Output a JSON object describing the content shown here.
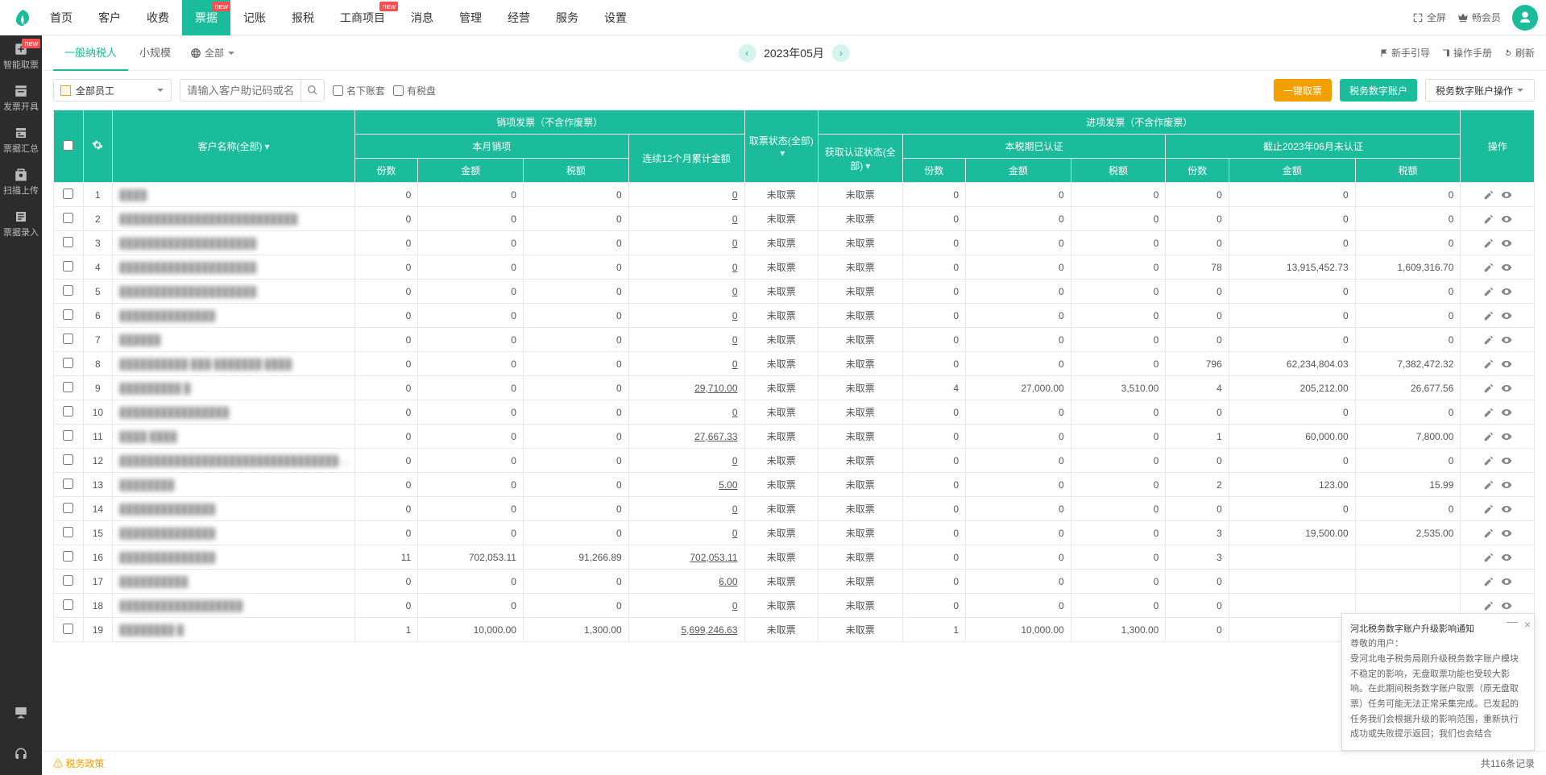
{
  "colors": {
    "teal": "#1abc9c",
    "orange": "#f2a000",
    "red": "#ff4d4f",
    "sidebar": "#2c2c2c"
  },
  "topnav": {
    "items": [
      "首页",
      "客户",
      "收费",
      "票据",
      "记账",
      "报税",
      "工商项目",
      "消息",
      "管理",
      "经营",
      "服务",
      "设置"
    ],
    "active_index": 3,
    "new_indices": [
      3,
      6
    ]
  },
  "topright": {
    "fullscreen": "全屏",
    "vip": "畅会员"
  },
  "sidebar": {
    "top": [
      {
        "label": "智能取票",
        "new": true
      },
      {
        "label": "发票开具"
      },
      {
        "label": "票据汇总"
      },
      {
        "label": "扫描上传"
      },
      {
        "label": "票据录入"
      }
    ]
  },
  "tabs": {
    "items": [
      "一般纳税人",
      "小规模"
    ],
    "active_index": 0,
    "region": "全部"
  },
  "period": {
    "label": "2023年05月"
  },
  "tabs_right": {
    "guide": "新手引导",
    "manual": "操作手册",
    "refresh": "刷新"
  },
  "filters": {
    "staff_sel": "全部员工",
    "search_placeholder": "请输入客户助记码或名称",
    "chk_named": "名下账套",
    "chk_disk": "有税盘"
  },
  "actions": {
    "one_click": "一键取票",
    "tax_acct": "税务数字账户",
    "acct_ops": "税务数字账户操作"
  },
  "table": {
    "group_headers": {
      "sales": "销项发票（不含作废票）",
      "purchase": "进项发票（不含作废票）",
      "month_sales": "本月销项",
      "cum12": "连续12个月累计金额",
      "fetch_status": "取票状态(全部)",
      "cert_this": "本税期已认证",
      "cert_until": "截止2023年06月未认证",
      "cert_get_status": "获取认证状态(全部)"
    },
    "cols": {
      "customer": "客户名称(全部)",
      "count": "份数",
      "amount": "金额",
      "tax": "税额",
      "op": "操作"
    },
    "rows": [
      {
        "i": 1,
        "name": "████",
        "c1": 0,
        "a1": "0",
        "t1": "0",
        "cum": "0",
        "fs": "未取票",
        "cs": "未取票",
        "c2": 0,
        "a2": "0",
        "t2": "0",
        "c3": 0,
        "a3": "0",
        "t3": "0"
      },
      {
        "i": 2,
        "name": "██████████████████████████",
        "c1": 0,
        "a1": "0",
        "t1": "0",
        "cum": "0",
        "fs": "未取票",
        "cs": "未取票",
        "c2": 0,
        "a2": "0",
        "t2": "0",
        "c3": 0,
        "a3": "0",
        "t3": "0"
      },
      {
        "i": 3,
        "name": "████████████████████",
        "c1": 0,
        "a1": "0",
        "t1": "0",
        "cum": "0",
        "fs": "未取票",
        "cs": "未取票",
        "c2": 0,
        "a2": "0",
        "t2": "0",
        "c3": 0,
        "a3": "0",
        "t3": "0"
      },
      {
        "i": 4,
        "name": "████████████████████",
        "c1": 0,
        "a1": "0",
        "t1": "0",
        "cum": "0",
        "fs": "未取票",
        "cs": "未取票",
        "c2": 0,
        "a2": "0",
        "t2": "0",
        "c3": 78,
        "a3": "13,915,452.73",
        "t3": "1,609,316.70"
      },
      {
        "i": 5,
        "name": "████████████████████",
        "c1": 0,
        "a1": "0",
        "t1": "0",
        "cum": "0",
        "fs": "未取票",
        "cs": "未取票",
        "c2": 0,
        "a2": "0",
        "t2": "0",
        "c3": 0,
        "a3": "0",
        "t3": "0"
      },
      {
        "i": 6,
        "name": "██████████████",
        "c1": 0,
        "a1": "0",
        "t1": "0",
        "cum": "0",
        "fs": "未取票",
        "cs": "未取票",
        "c2": 0,
        "a2": "0",
        "t2": "0",
        "c3": 0,
        "a3": "0",
        "t3": "0"
      },
      {
        "i": 7,
        "name": "██████",
        "c1": 0,
        "a1": "0",
        "t1": "0",
        "cum": "0",
        "fs": "未取票",
        "cs": "未取票",
        "c2": 0,
        "a2": "0",
        "t2": "0",
        "c3": 0,
        "a3": "0",
        "t3": "0"
      },
      {
        "i": 8,
        "name": "██████████ ███ ███████ ████",
        "c1": 0,
        "a1": "0",
        "t1": "0",
        "cum": "0",
        "fs": "未取票",
        "cs": "未取票",
        "c2": 0,
        "a2": "0",
        "t2": "0",
        "c3": 796,
        "a3": "62,234,804.03",
        "t3": "7,382,472.32"
      },
      {
        "i": 9,
        "name": "█████████ █",
        "c1": 0,
        "a1": "0",
        "t1": "0",
        "cum": "29,710.00",
        "fs": "未取票",
        "cs": "未取票",
        "c2": 4,
        "a2": "27,000.00",
        "t2": "3,510.00",
        "c3": 4,
        "a3": "205,212.00",
        "t3": "26,677.56"
      },
      {
        "i": 10,
        "name": "████████████████",
        "c1": 0,
        "a1": "0",
        "t1": "0",
        "cum": "0",
        "fs": "未取票",
        "cs": "未取票",
        "c2": 0,
        "a2": "0",
        "t2": "0",
        "c3": 0,
        "a3": "0",
        "t3": "0"
      },
      {
        "i": 11,
        "name": "████ ████",
        "c1": 0,
        "a1": "0",
        "t1": "0",
        "cum": "27,667.33",
        "fs": "未取票",
        "cs": "未取票",
        "c2": 0,
        "a2": "0",
        "t2": "0",
        "c3": 1,
        "a3": "60,000.00",
        "t3": "7,800.00"
      },
      {
        "i": 12,
        "name": "████████████████████████████████ ...",
        "c1": 0,
        "a1": "0",
        "t1": "0",
        "cum": "0",
        "fs": "未取票",
        "cs": "未取票",
        "c2": 0,
        "a2": "0",
        "t2": "0",
        "c3": 0,
        "a3": "0",
        "t3": "0"
      },
      {
        "i": 13,
        "name": "████████",
        "c1": 0,
        "a1": "0",
        "t1": "0",
        "cum": "5.00",
        "fs": "未取票",
        "cs": "未取票",
        "c2": 0,
        "a2": "0",
        "t2": "0",
        "c3": 2,
        "a3": "123.00",
        "t3": "15.99"
      },
      {
        "i": 14,
        "name": "██████████████",
        "c1": 0,
        "a1": "0",
        "t1": "0",
        "cum": "0",
        "fs": "未取票",
        "cs": "未取票",
        "c2": 0,
        "a2": "0",
        "t2": "0",
        "c3": 0,
        "a3": "0",
        "t3": "0"
      },
      {
        "i": 15,
        "name": "██████████████",
        "c1": 0,
        "a1": "0",
        "t1": "0",
        "cum": "0",
        "fs": "未取票",
        "cs": "未取票",
        "c2": 0,
        "a2": "0",
        "t2": "0",
        "c3": 3,
        "a3": "19,500.00",
        "t3": "2,535.00"
      },
      {
        "i": 16,
        "name": "██████████████",
        "c1": 11,
        "a1": "702,053.11",
        "t1": "91,266.89",
        "cum": "702,053.11",
        "fs": "未取票",
        "cs": "未取票",
        "c2": 0,
        "a2": "0",
        "t2": "0",
        "c3": 3,
        "a3": "",
        "t3": ""
      },
      {
        "i": 17,
        "name": "██████████",
        "c1": 0,
        "a1": "0",
        "t1": "0",
        "cum": "6.00",
        "fs": "未取票",
        "cs": "未取票",
        "c2": 0,
        "a2": "0",
        "t2": "0",
        "c3": 0,
        "a3": "",
        "t3": ""
      },
      {
        "i": 18,
        "name": "██████████████████",
        "c1": 0,
        "a1": "0",
        "t1": "0",
        "cum": "0",
        "fs": "未取票",
        "cs": "未取票",
        "c2": 0,
        "a2": "0",
        "t2": "0",
        "c3": 0,
        "a3": "",
        "t3": ""
      },
      {
        "i": 19,
        "name": "████████ █",
        "c1": 1,
        "a1": "10,000.00",
        "t1": "1,300.00",
        "cum": "5,699,246.63",
        "fs": "未取票",
        "cs": "未取票",
        "c2": 1,
        "a2": "10,000.00",
        "t2": "1,300.00",
        "c3": 0,
        "a3": "",
        "t3": ""
      }
    ],
    "footer_total": "共116条记录"
  },
  "footer": {
    "policy": "税务政策"
  },
  "notice": {
    "title": "河北税务数字账户升级影响通知",
    "greeting": "尊敬的用户：",
    "body": "受河北电子税务局刚升级税务数字账户模块不稳定的影响，无盘取票功能也受较大影响。在此期间税务数字账户取票（原无盘取票）任务可能无法正常采集完成。已发起的任务我们会根据升级的影响范围，重新执行成功或失败提示返回；我们也会结合"
  }
}
